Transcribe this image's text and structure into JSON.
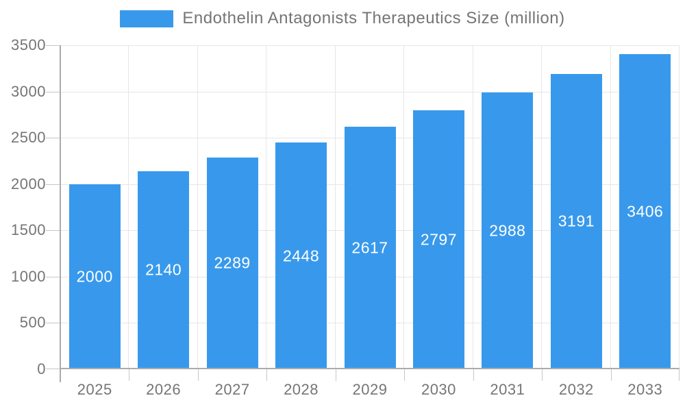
{
  "chart_data": {
    "type": "bar",
    "title": "",
    "legend": [
      "Endothelin Antagonists Therapeutics Size (million)"
    ],
    "legend_position": "top",
    "categories": [
      "2025",
      "2026",
      "2027",
      "2028",
      "2029",
      "2030",
      "2031",
      "2032",
      "2033"
    ],
    "values": [
      2000,
      2140,
      2289,
      2448,
      2617,
      2797,
      2988,
      3191,
      3406
    ],
    "xlabel": "",
    "ylabel": "",
    "ylim": [
      0,
      3500
    ],
    "yticks": [
      0,
      500,
      1000,
      1500,
      2000,
      2500,
      3000,
      3500
    ],
    "grid": true,
    "value_labels_shown": true
  },
  "colors": {
    "bar": "#3899EC",
    "grid": "#E6E6E6",
    "axis": "#ABABAB",
    "tick": "#C6C6C6",
    "axis_label": "#757575",
    "legend_text": "#757575",
    "value_label": "#FFFFFF",
    "background": "#FFFFFF"
  }
}
